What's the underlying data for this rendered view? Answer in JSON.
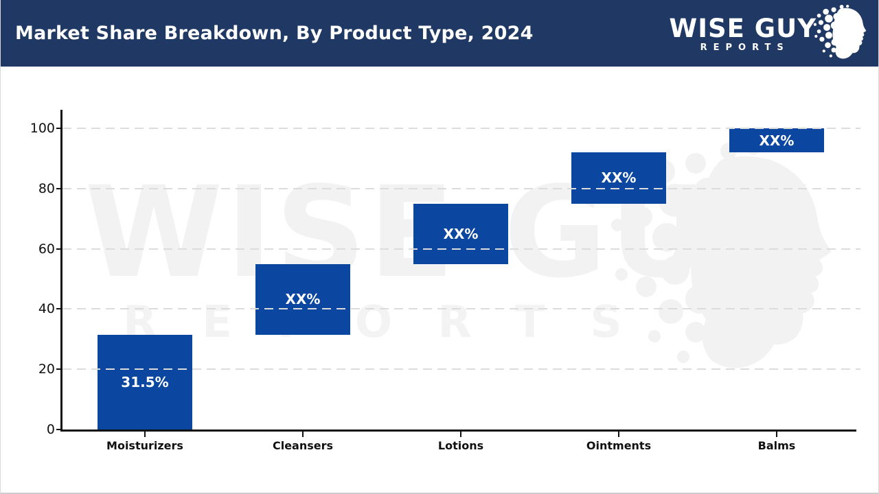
{
  "header": {
    "title": "Market Share Breakdown, By Product Type, 2024",
    "logo": {
      "line1": "WISE GUY",
      "line2": "REPORTS"
    }
  },
  "watermark": {
    "line1": "WISE GUY",
    "line2": "REPORTS"
  },
  "chart_data": {
    "type": "bar",
    "subtype": "waterfall-floating-bars",
    "title": "Market Share Breakdown, By Product Type, 2024",
    "xlabel": "",
    "ylabel": "",
    "categories": [
      "Moisturizers",
      "Cleansers",
      "Lotions",
      "Ointments",
      "Balms"
    ],
    "segments": [
      {
        "category": "Moisturizers",
        "start": 0,
        "end": 31.5,
        "size": 31.5,
        "label": "31.5%"
      },
      {
        "category": "Cleansers",
        "start": 31.5,
        "end": 55,
        "size": 23.5,
        "label": "XX%"
      },
      {
        "category": "Lotions",
        "start": 55,
        "end": 75,
        "size": 20,
        "label": "XX%"
      },
      {
        "category": "Ointments",
        "start": 75,
        "end": 92,
        "size": 17,
        "label": "XX%"
      },
      {
        "category": "Balms",
        "start": 92,
        "end": 100,
        "size": 8,
        "label": "XX%"
      }
    ],
    "yticks": [
      0,
      20,
      40,
      60,
      80,
      100
    ],
    "ylim": [
      0,
      100
    ],
    "grid": "horizontal-dashed, drawn over bars",
    "legend": "none",
    "bar_color": "#0b47a0",
    "bar_label_color": "#ffffff",
    "axis_color": "#111111",
    "gridline_color": "#dcdcdc"
  },
  "colors": {
    "header_bg": "#1f3864",
    "header_text": "#ffffff",
    "background": "#ffffff",
    "watermark": "#f2f2f3"
  }
}
